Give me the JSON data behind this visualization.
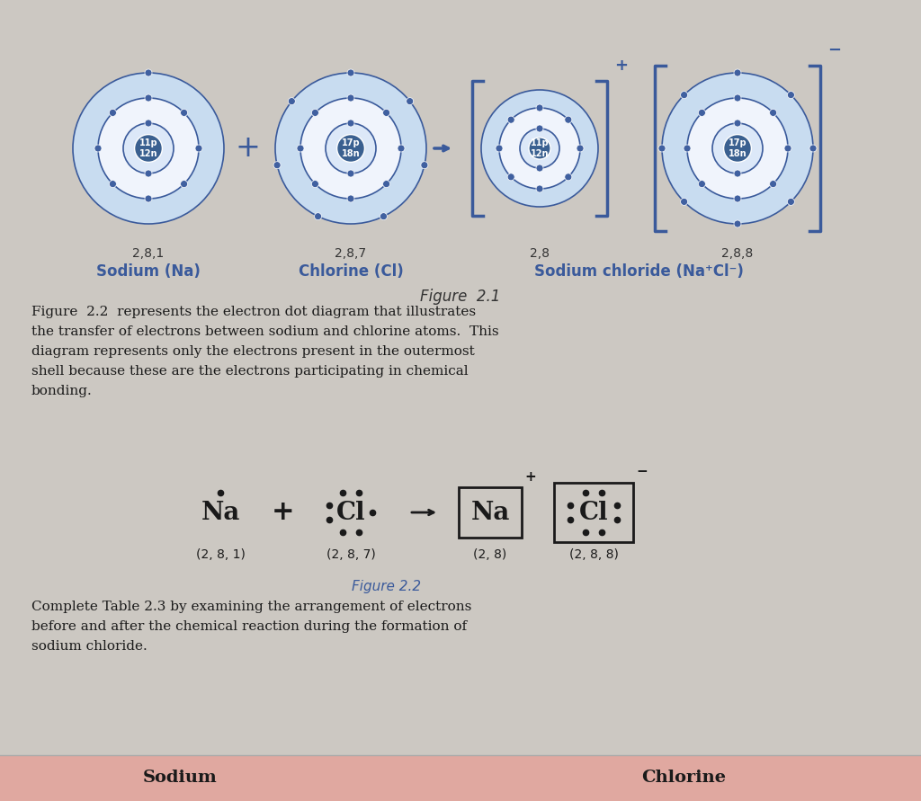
{
  "bg_color": "#ccc8c2",
  "text_color": "#1a1a1a",
  "blue_dark": "#3a5a9b",
  "figure1_caption": "Figure  2.1",
  "figure2_caption": "Figure 2.2",
  "para1_line1": "Figure  2.2  represents the electron dot diagram that illustrates",
  "para1_line2": "the transfer of electrons between sodium and chlorine atoms.  This",
  "para1_line3": "diagram represents only the electrons present in the outermost",
  "para1_line4": "shell because these are the electrons participating in chemical",
  "para1_line5": "bonding.",
  "para2_line1": "Complete Table 2.3 by examining the arrangement of electrons",
  "para2_line2": "before and after the chemical reaction during the formation of",
  "para2_line3": "sodium chloride.",
  "bottom_left": "Sodium",
  "bottom_right": "Chlorine",
  "atom_ring_colors": [
    "#dce8f8",
    "#b8d0ec",
    "#94b8e0",
    "#70a0d4",
    "#ffffff"
  ],
  "atom_center_color": "#3a6090",
  "atom_dot_color": "#4060a0",
  "bracket_color": "#3a5a9b"
}
